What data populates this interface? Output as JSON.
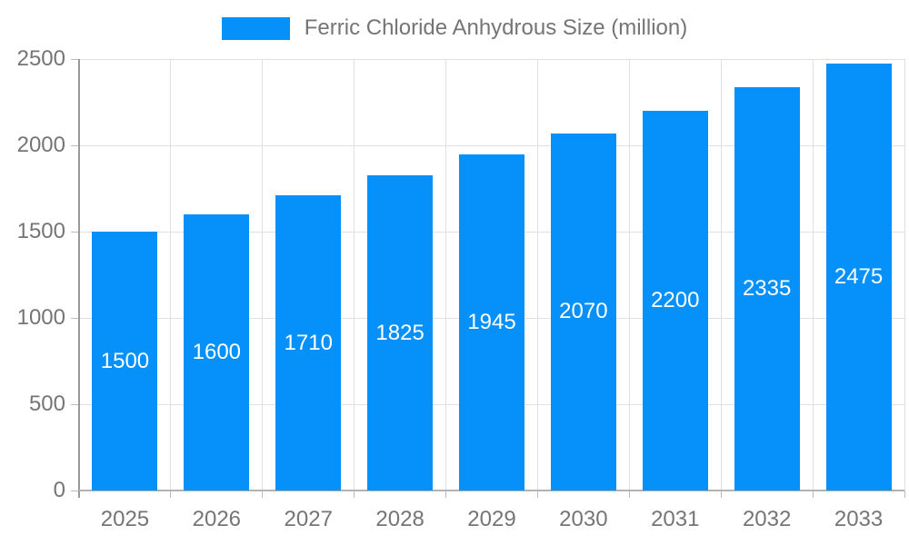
{
  "chart_data": {
    "type": "bar",
    "title": "Ferric Chloride Anhydrous Size (million)",
    "legend": {
      "position": "top",
      "label": "Ferric Chloride Anhydrous Size (million)"
    },
    "categories": [
      "2025",
      "2026",
      "2027",
      "2028",
      "2029",
      "2030",
      "2031",
      "2032",
      "2033"
    ],
    "series": [
      {
        "name": "Ferric Chloride Anhydrous Size (million)",
        "values": [
          1500,
          1600,
          1710,
          1825,
          1945,
          2070,
          2200,
          2335,
          2475
        ]
      }
    ],
    "xlabel": "",
    "ylabel": "",
    "ylim": [
      0,
      2500
    ],
    "yticks": [
      0,
      500,
      1000,
      1500,
      2000,
      2500
    ],
    "grid": true,
    "bar_labels_shown": true
  },
  "colors": {
    "bar": "#0690FA",
    "bar_label_text": "#ffffff",
    "axis_text": "#757575",
    "gridline": "#e0e0e0",
    "axis_line": "#999999",
    "baseline": "#b3b3b3",
    "background": "#ffffff"
  }
}
